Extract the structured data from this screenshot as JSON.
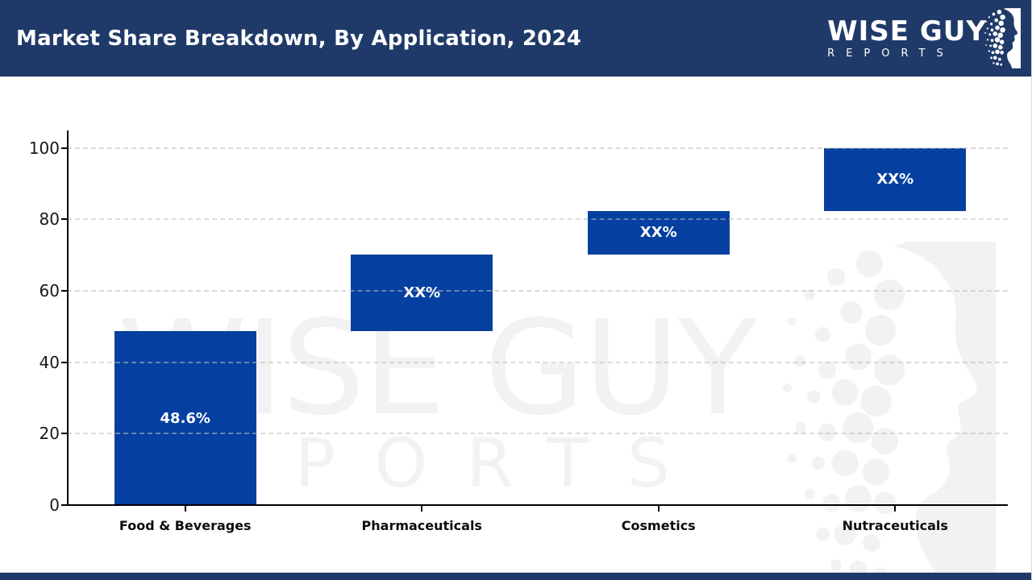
{
  "header": {
    "title": "Market Share Breakdown, By Application, 2024",
    "logo": {
      "line1": "WISE GUY",
      "line2": "REPORTS"
    }
  },
  "watermark": {
    "line1": "WISE GUY",
    "line2": "REPORTS"
  },
  "chart_data": {
    "type": "bar",
    "subtype": "waterfall",
    "title": "Market Share Breakdown, By Application, 2024",
    "xlabel": "",
    "ylabel": "",
    "ylim": [
      0,
      105
    ],
    "yticks": [
      0,
      20,
      40,
      60,
      80,
      100
    ],
    "grid": "horizontal-dashed",
    "legend": "none",
    "bar_color": "#0540a0",
    "label_color": "#ffffff",
    "categories": [
      "Food & Beverages",
      "Pharmaceuticals",
      "Cosmetics",
      "Nutraceuticals"
    ],
    "segments": [
      {
        "category": "Food & Beverages",
        "start": 0,
        "end": 48.6,
        "label": "48.6%"
      },
      {
        "category": "Pharmaceuticals",
        "start": 48.6,
        "end": 70.1,
        "label": "XX%"
      },
      {
        "category": "Cosmetics",
        "start": 70.1,
        "end": 82.4,
        "label": "XX%"
      },
      {
        "category": "Nutraceuticals",
        "start": 82.4,
        "end": 100,
        "label": "XX%"
      }
    ]
  },
  "colors": {
    "header_bg": "#1f3a68",
    "bar_blue": "#0540a0",
    "watermark_gray": "#f2f2f2"
  }
}
